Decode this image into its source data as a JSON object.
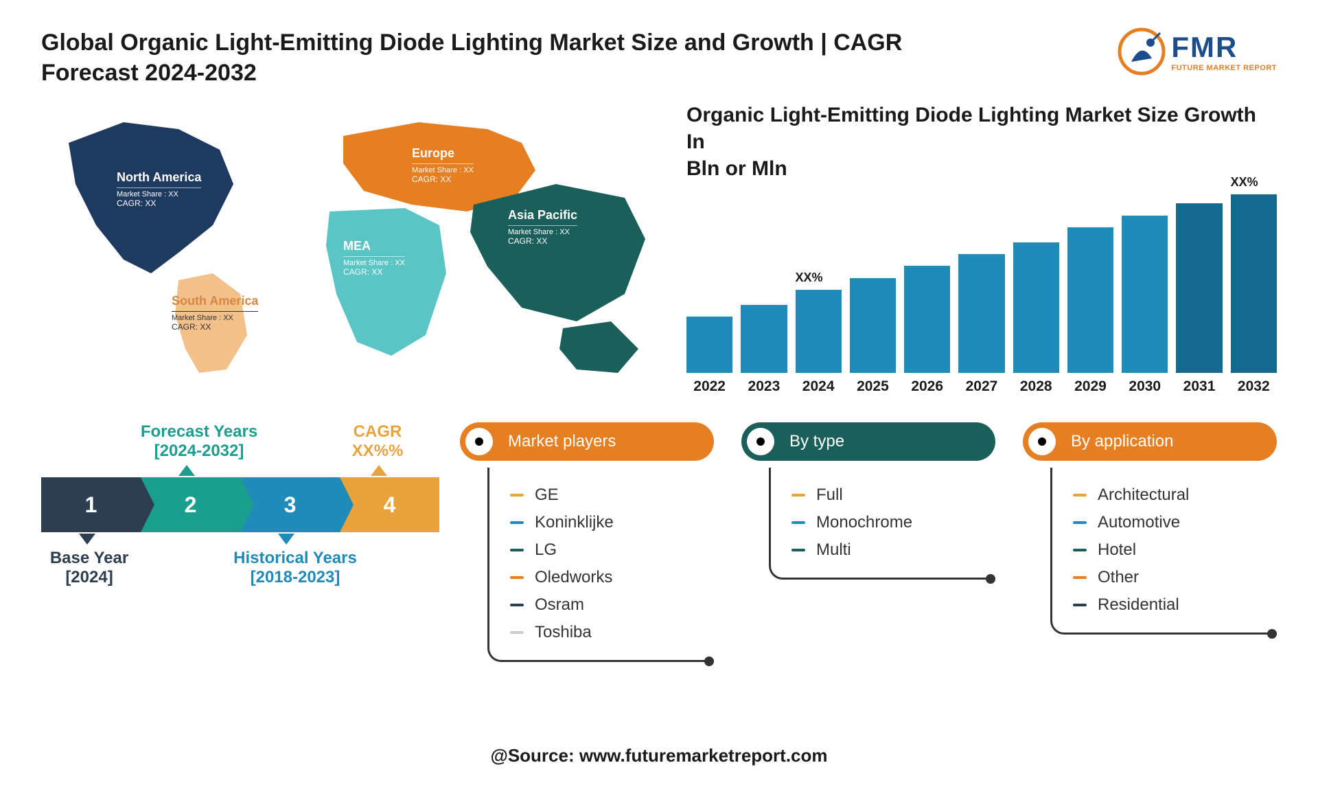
{
  "title": "Global Organic Light-Emitting Diode Lighting Market Size and Growth | CAGR Forecast 2024-2032",
  "logo": {
    "fmr": "FMR",
    "sub": "FUTURE MARKET REPORT"
  },
  "map": {
    "regions": [
      {
        "name": "North America",
        "share": "Market Share : XX",
        "cagr": "CAGR: XX",
        "color": "#1e3a5f"
      },
      {
        "name": "South America",
        "share": "Market Share : XX",
        "cagr": "CAGR: XX",
        "color": "#f4c08a"
      },
      {
        "name": "Europe",
        "share": "Market Share : XX",
        "cagr": "CAGR: XX",
        "color": "#e67e22"
      },
      {
        "name": "MEA",
        "share": "Market Share : XX",
        "cagr": "CAGR: XX",
        "color": "#5bc4c4"
      },
      {
        "name": "Asia Pacific",
        "share": "Market Share : XX",
        "cagr": "CAGR: XX",
        "color": "#1a5f5a"
      }
    ]
  },
  "bar_chart": {
    "title": "Organic Light-Emitting Diode Lighting Market Size Growth In\nBln or Mln",
    "type": "bar",
    "years": [
      "2022",
      "2023",
      "2024",
      "2025",
      "2026",
      "2027",
      "2028",
      "2029",
      "2030",
      "2031",
      "2032"
    ],
    "values": [
      95,
      115,
      140,
      160,
      180,
      200,
      220,
      245,
      265,
      285,
      300
    ],
    "ylim_max": 300,
    "bar_color_light": "#1e8bb8",
    "bar_color_dark": "#146a8e",
    "dark_indices": [
      9,
      10
    ],
    "tag_2024": "XX%",
    "tag_2032": "XX%",
    "label_fontsize": 21
  },
  "timeline": {
    "forecast_label": "Forecast Years",
    "forecast_range": "[2024-2032]",
    "cagr_label": "CAGR",
    "cagr_value": "XX%%",
    "base_label": "Base Year",
    "base_range": "[2024]",
    "hist_label": "Historical Years",
    "hist_range": "[2018-2023]",
    "segments": [
      {
        "num": "1",
        "color": "#2c3e50"
      },
      {
        "num": "2",
        "color": "#1a9e8e"
      },
      {
        "num": "3",
        "color": "#1e8bb8"
      },
      {
        "num": "4",
        "color": "#e8a33d"
      }
    ]
  },
  "categories": [
    {
      "title": "Market players",
      "header_color": "#e67e22",
      "items": [
        {
          "label": "GE",
          "tick": "#e8a33d"
        },
        {
          "label": "Koninklijke",
          "tick": "#1e8bb8"
        },
        {
          "label": "LG",
          "tick": "#1a5f5a"
        },
        {
          "label": "Oledworks",
          "tick": "#e67e22"
        },
        {
          "label": "Osram",
          "tick": "#2c3e50"
        },
        {
          "label": "Toshiba",
          "tick": "#ccc"
        }
      ]
    },
    {
      "title": "By type",
      "header_color": "#1a5f5a",
      "items": [
        {
          "label": "Full",
          "tick": "#e8a33d"
        },
        {
          "label": "Monochrome",
          "tick": "#1e8bb8"
        },
        {
          "label": "Multi",
          "tick": "#1a5f5a"
        }
      ]
    },
    {
      "title": "By application",
      "header_color": "#e67e22",
      "items": [
        {
          "label": "Architectural",
          "tick": "#e8a33d"
        },
        {
          "label": "Automotive",
          "tick": "#1e8bb8"
        },
        {
          "label": "Hotel",
          "tick": "#1a5f5a"
        },
        {
          "label": "Other",
          "tick": "#e67e22"
        },
        {
          "label": "Residential",
          "tick": "#2c3e50"
        }
      ]
    }
  ],
  "source": "@Source: www.futuremarketreport.com"
}
